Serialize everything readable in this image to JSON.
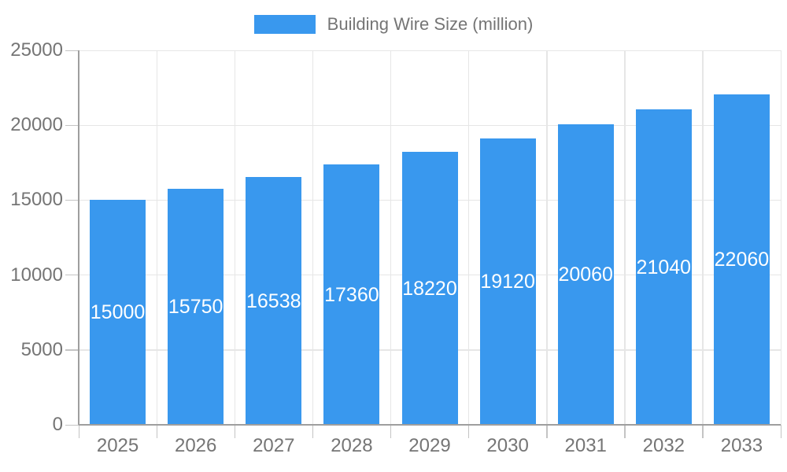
{
  "chart_data": {
    "type": "bar",
    "title": "",
    "legend": {
      "label": "Building Wire Size (million)",
      "position": "top-center"
    },
    "categories": [
      "2025",
      "2026",
      "2027",
      "2028",
      "2029",
      "2030",
      "2031",
      "2032",
      "2033"
    ],
    "series": [
      {
        "name": "Building Wire Size (million)",
        "values": [
          15000,
          15750,
          16538,
          17360,
          18220,
          19120,
          20060,
          21040,
          22060
        ]
      }
    ],
    "xlabel": "",
    "ylabel": "",
    "ylim": [
      0,
      25000
    ],
    "yticks": [
      0,
      5000,
      10000,
      15000,
      20000,
      25000
    ],
    "grid": true,
    "data_labels": {
      "visible": true,
      "position": "inside-center"
    },
    "colors": {
      "bar": "#3998ee",
      "axis_line": "#9e9e9e",
      "grid_line": "#e6e6e6",
      "tick_line": "#c4c4c4",
      "axis_text": "#757575",
      "data_label_text": "#ffffff",
      "legend_text": "#757575",
      "background": "#ffffff"
    }
  }
}
